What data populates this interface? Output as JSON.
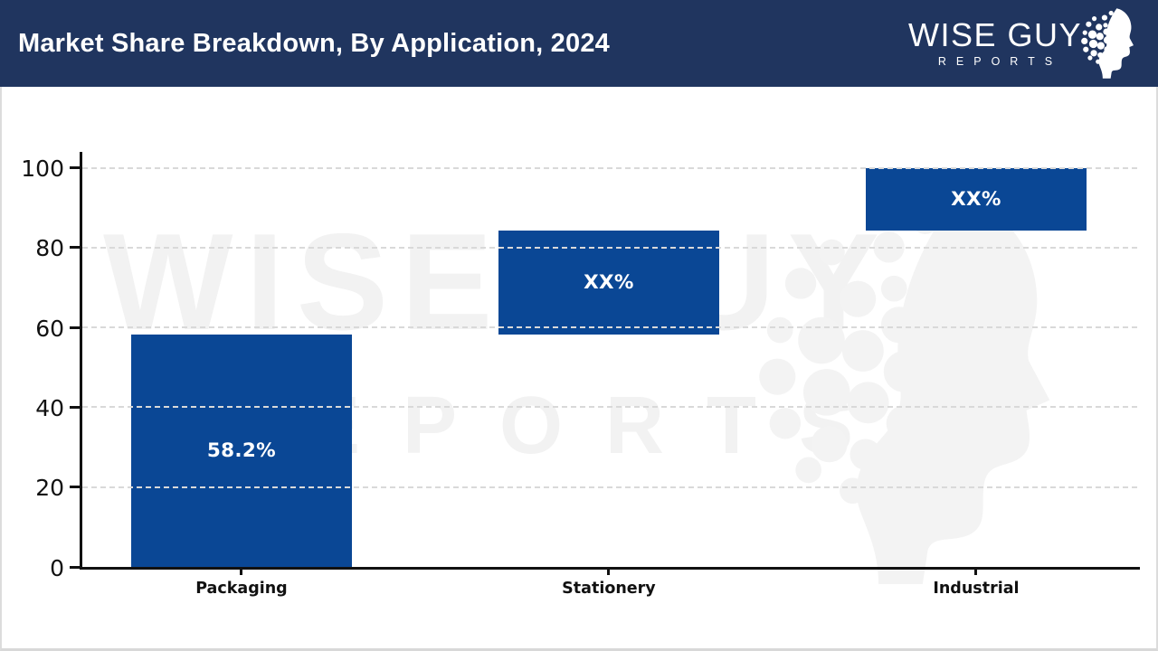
{
  "header": {
    "title": "Market Share Breakdown, By Application, 2024",
    "bg_color": "#20355f",
    "logo": {
      "line1": "WISE GUY",
      "line2": "REPORTS"
    }
  },
  "watermark": {
    "line1": "WISE GUY",
    "line2": "REPORTS"
  },
  "chart_data": {
    "type": "bar",
    "subtype": "stepped-market-share",
    "title": "Market Share Breakdown, By Application, 2024",
    "categories": [
      "Packaging",
      "Stationery",
      "Industrial"
    ],
    "segments": [
      {
        "category": "Packaging",
        "start": 0,
        "end": 58.2,
        "label": "58.2%"
      },
      {
        "category": "Stationery",
        "start": 58.2,
        "end": 84.3,
        "label": "XX%"
      },
      {
        "category": "Industrial",
        "start": 84.3,
        "end": 100,
        "label": "XX%"
      }
    ],
    "yticks": [
      0,
      20,
      40,
      60,
      80,
      100
    ],
    "ylim": [
      0,
      104
    ],
    "xlabel": "",
    "ylabel": "",
    "grid": "dashed-horizontal",
    "legend": "none",
    "bar_color": "#0a4795",
    "bar_label_color": "#ffffff",
    "axis_color": "#111111",
    "gridline_color": "#d9d9d9"
  }
}
